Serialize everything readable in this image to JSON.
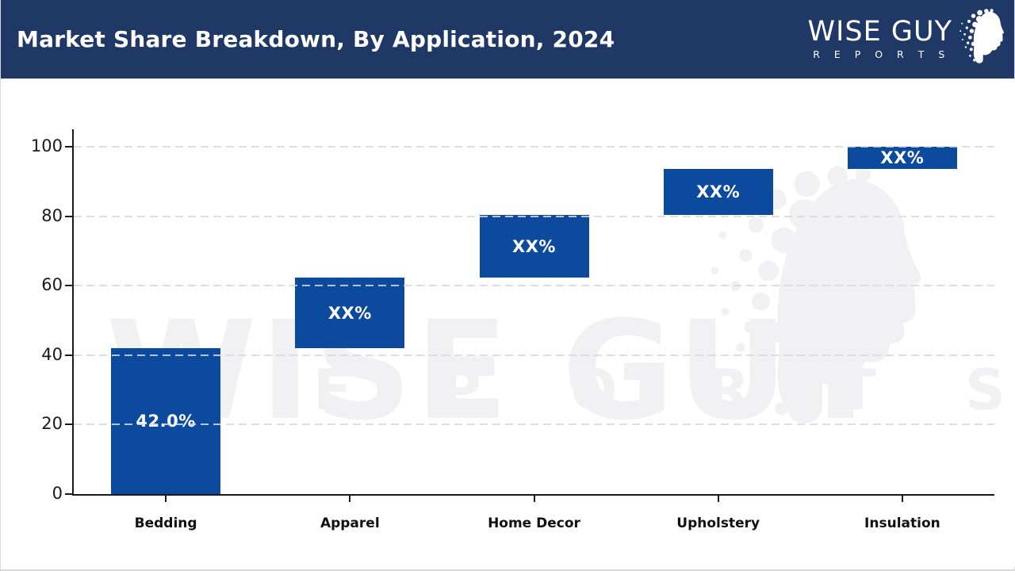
{
  "header": {
    "title": "Market Share Breakdown, By Application, 2024",
    "logo": {
      "line1": "WISE GUY",
      "line2": "R E P O R T S"
    }
  },
  "watermark": {
    "line1": "WISE GUY",
    "line2": "R E P O R T S"
  },
  "colors": {
    "header_bg": "#1f3865",
    "bar": "#0c4a9e",
    "bar_label_text": "#ffffff",
    "axis": "#1a1a1a",
    "grid": "#d7d9dd",
    "watermark": "#f1f1f4"
  },
  "chart_data": {
    "type": "bar",
    "subtype": "waterfall",
    "title": "Market Share Breakdown, By Application, 2024",
    "categories": [
      "Bedding",
      "Apparel",
      "Home Decor",
      "Upholstery",
      "Insulation"
    ],
    "segments": [
      {
        "category": "Bedding",
        "start": 0,
        "end": 42,
        "label": "42.0%"
      },
      {
        "category": "Apparel",
        "start": 42,
        "end": 62.3,
        "label": "XX%"
      },
      {
        "category": "Home Decor",
        "start": 62.3,
        "end": 80.3,
        "label": "XX%"
      },
      {
        "category": "Upholstery",
        "start": 80.3,
        "end": 93.7,
        "label": "XX%"
      },
      {
        "category": "Insulation",
        "start": 93.7,
        "end": 100,
        "label": "XX%"
      }
    ],
    "xlabel": "",
    "ylabel": "",
    "yticks": [
      0,
      20,
      40,
      60,
      80,
      100
    ],
    "ylim": [
      0,
      105
    ],
    "grid": "horizontal-dashed",
    "legend": false
  }
}
